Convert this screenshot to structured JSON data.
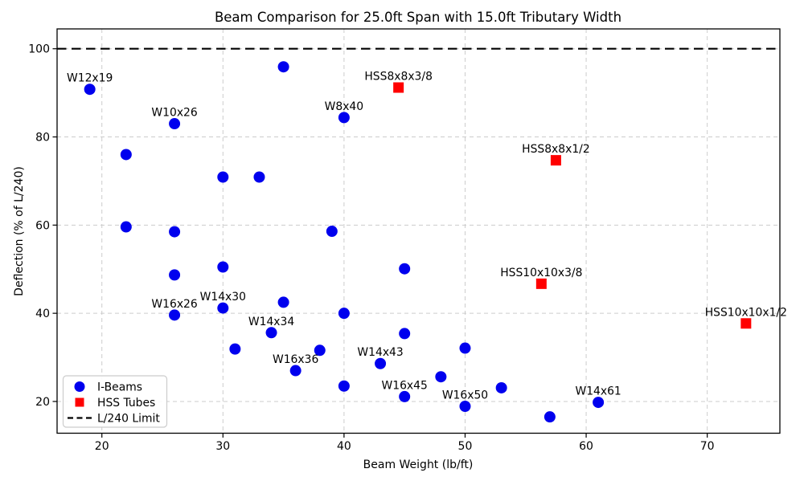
{
  "chart_data": {
    "type": "scatter",
    "title": "Beam Comparison for 25.0ft Span with 15.0ft Tributary Width",
    "xlabel": "Beam Weight (lb/ft)",
    "ylabel": "Deflection (% of L/240)",
    "xlim": [
      16.3,
      76.0
    ],
    "ylim": [
      12.8,
      104.5
    ],
    "xticks": [
      20,
      30,
      40,
      50,
      60,
      70
    ],
    "yticks": [
      20,
      40,
      60,
      80,
      100
    ],
    "grid": true,
    "grid_color": "#cccccc",
    "background": "#ffffff",
    "legend_position": "lower-left",
    "series": [
      {
        "name": "I-Beams",
        "marker": "circle",
        "color": "#0000ee",
        "points": [
          {
            "x": 19,
            "y": 90.8,
            "label": "W12x19"
          },
          {
            "x": 22,
            "y": 76.0
          },
          {
            "x": 22,
            "y": 59.6
          },
          {
            "x": 26,
            "y": 83.0,
            "label": "W10x26"
          },
          {
            "x": 26,
            "y": 58.5
          },
          {
            "x": 26,
            "y": 48.7
          },
          {
            "x": 26,
            "y": 39.6,
            "label": "W16x26"
          },
          {
            "x": 30,
            "y": 70.9
          },
          {
            "x": 30,
            "y": 50.5
          },
          {
            "x": 30,
            "y": 41.2,
            "label": "W14x30"
          },
          {
            "x": 31,
            "y": 31.9
          },
          {
            "x": 33,
            "y": 70.9
          },
          {
            "x": 34,
            "y": 35.6,
            "label": "W14x34"
          },
          {
            "x": 35,
            "y": 95.9
          },
          {
            "x": 35,
            "y": 42.5
          },
          {
            "x": 36,
            "y": 27.0,
            "label": "W16x36"
          },
          {
            "x": 38,
            "y": 31.6
          },
          {
            "x": 39,
            "y": 58.6
          },
          {
            "x": 40,
            "y": 84.4,
            "label": "W8x40"
          },
          {
            "x": 40,
            "y": 40.0
          },
          {
            "x": 40,
            "y": 23.5
          },
          {
            "x": 43,
            "y": 28.6,
            "label": "W14x43"
          },
          {
            "x": 45,
            "y": 50.1
          },
          {
            "x": 45,
            "y": 35.4
          },
          {
            "x": 45,
            "y": 21.1,
            "label": "W16x45"
          },
          {
            "x": 48,
            "y": 25.6
          },
          {
            "x": 50,
            "y": 32.1
          },
          {
            "x": 50,
            "y": 18.9,
            "label": "W16x50"
          },
          {
            "x": 53,
            "y": 23.1
          },
          {
            "x": 57,
            "y": 16.5
          },
          {
            "x": 61,
            "y": 19.8,
            "label": "W14x61"
          }
        ]
      },
      {
        "name": "HSS Tubes",
        "marker": "square",
        "color": "#ff0000",
        "points": [
          {
            "x": 44.5,
            "y": 91.2,
            "label": "HSS8x8x3/8"
          },
          {
            "x": 57.5,
            "y": 74.7,
            "label": "HSS8x8x1/2"
          },
          {
            "x": 56.3,
            "y": 46.7,
            "label": "HSS10x10x3/8"
          },
          {
            "x": 73.2,
            "y": 37.7,
            "label": "HSS10x10x1/2"
          }
        ]
      }
    ],
    "limit_line": {
      "name": "L/240 Limit",
      "y": 100,
      "style": "dashed",
      "color": "#000000"
    }
  }
}
